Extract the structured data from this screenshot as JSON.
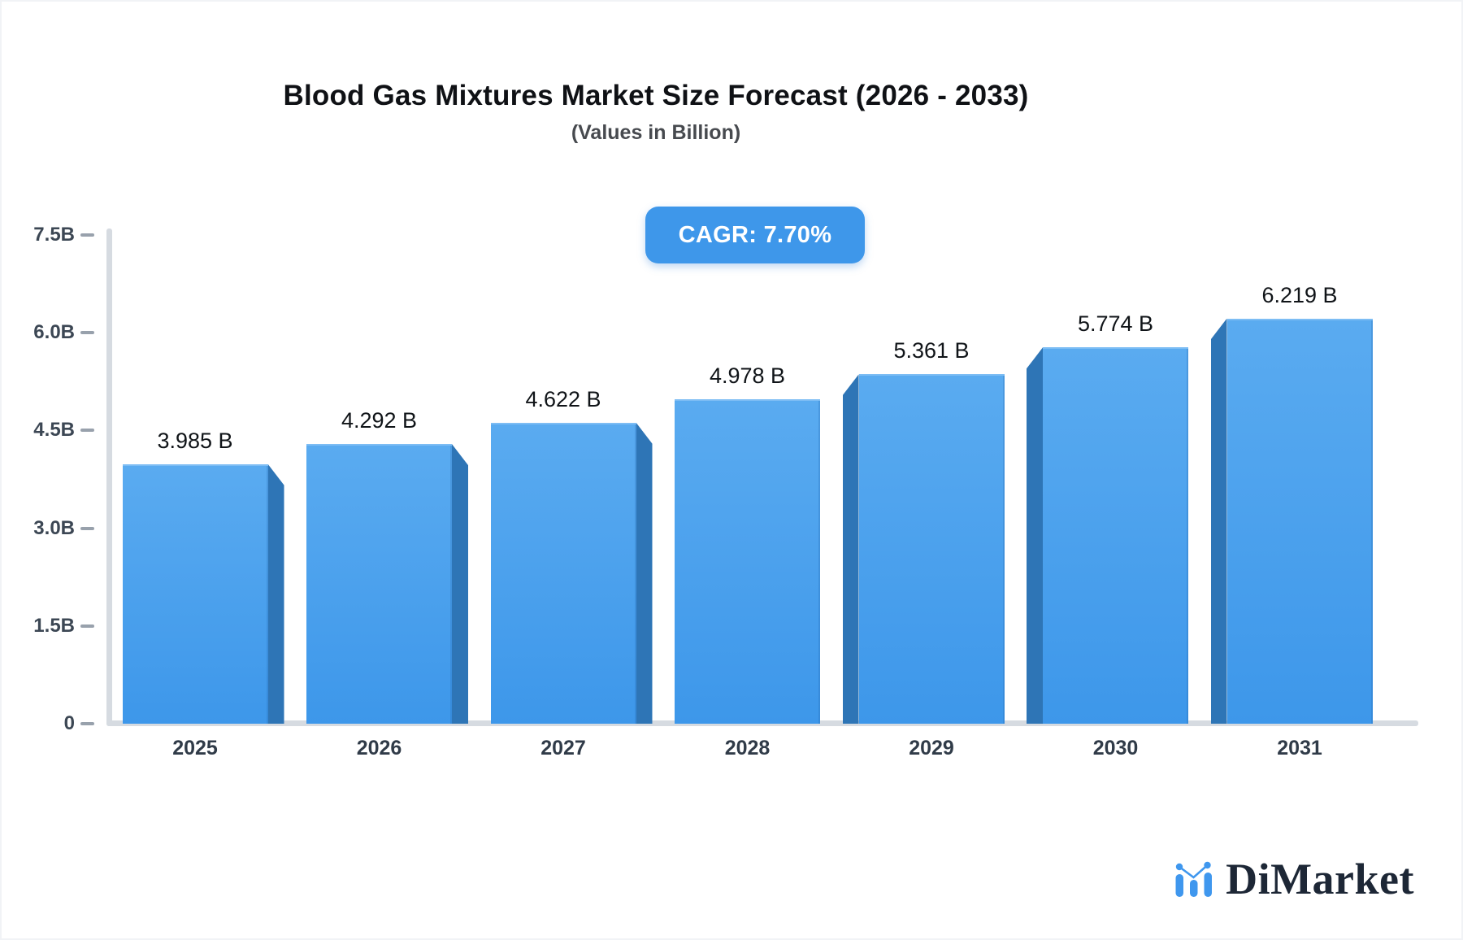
{
  "page": {
    "title": "Blood Gas Mixtures Market Size Forecast (2026 - 2033)",
    "subtitle": "(Values in Billion)",
    "cagr_badge_label": "CAGR: 7.70%"
  },
  "chart_data": {
    "type": "bar",
    "title": "Blood Gas Mixtures Market Size Forecast (2026 - 2033)",
    "subtitle": "(Values in Billion)",
    "cagr_percent": "7.70%",
    "categories": [
      "2025",
      "2026",
      "2027",
      "2028",
      "2029",
      "2030",
      "2031"
    ],
    "values": [
      3.985,
      4.292,
      4.622,
      4.978,
      5.361,
      5.774,
      6.219
    ],
    "value_labels": [
      "3.985 B",
      "4.292 B",
      "4.622 B",
      "4.978 B",
      "5.361 B",
      "5.774 B",
      "6.219 B"
    ],
    "xlabel": "",
    "ylabel": "",
    "ylim": [
      0,
      7.5
    ],
    "ytick_values": [
      7.5,
      6.0,
      4.5,
      3.0,
      1.5,
      0
    ],
    "ytick_labels": [
      "7.5B",
      "6.0B",
      "4.5B",
      "3.0B",
      "1.5B",
      "0"
    ],
    "grid": false,
    "legend": "none",
    "bar_3d_shadow_side": [
      "right",
      "right",
      "right",
      "none",
      "left",
      "left",
      "left"
    ]
  },
  "colors": {
    "bar_face_top": "#5aabf0",
    "bar_face_bottom": "#3d97ea",
    "bar_face_top_edge": "#7dbdf4",
    "bar_side_shadow": "#2e75b6",
    "axis_line": "#d6dbe1",
    "tick_dash": "#98a1ac",
    "badge_background": "#3e97ea",
    "badge_text": "#ffffff",
    "logo_blue": "#3f97ee"
  },
  "logo": {
    "text": "DiMarket",
    "icon": "bar-line-chart-logo-icon"
  }
}
